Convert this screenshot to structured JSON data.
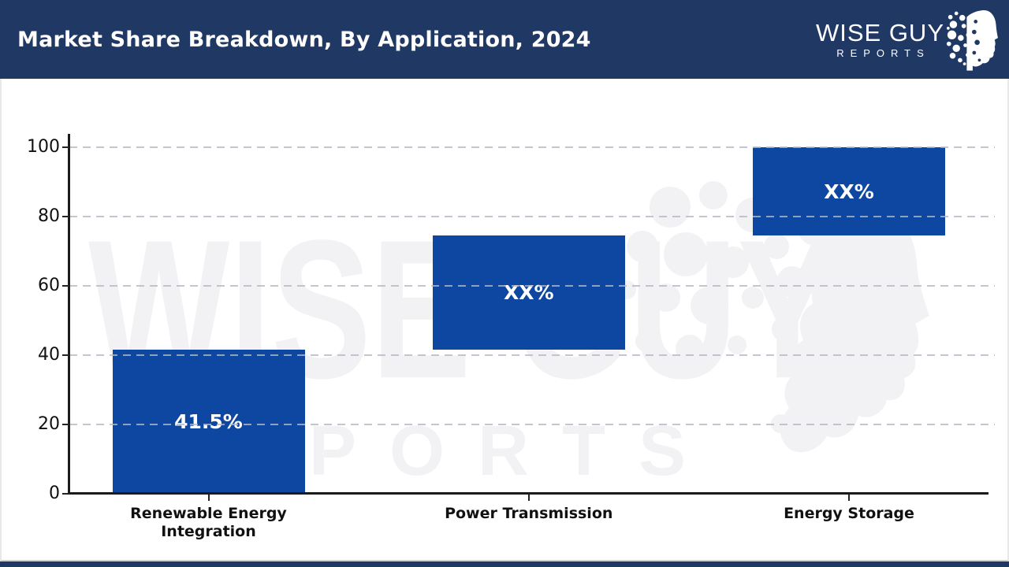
{
  "header": {
    "title": "Market Share Breakdown, By Application, 2024"
  },
  "logo": {
    "line1": "WISE GUY",
    "line2": "REPORTS"
  },
  "watermark": {
    "line1": "WISE GUY",
    "line2": "REPORTS"
  },
  "chart_data": {
    "type": "bar",
    "subtype": "floating-segment-bars (stacked percentage breakdown)",
    "title": "Market Share Breakdown, By Application, 2024",
    "categories": [
      "Renewable Energy Integration",
      "Power Transmission",
      "Energy Storage"
    ],
    "series": [
      {
        "name": "Renewable Energy Integration",
        "start": 0,
        "end": 41.5,
        "label": "41.5%"
      },
      {
        "name": "Power Transmission",
        "start": 41.5,
        "end": 74.5,
        "label": "XX%"
      },
      {
        "name": "Energy Storage",
        "start": 74.5,
        "end": 100,
        "label": "XX%"
      }
    ],
    "xlabel": "",
    "ylabel": "",
    "yticks": [
      0,
      20,
      40,
      60,
      80,
      100
    ],
    "ylim": [
      0,
      104
    ],
    "grid": "horizontal dashed, drawn over bars",
    "legend": "none",
    "bar_color": "#0d47a1",
    "bar_label_color": "#ffffff"
  },
  "colors": {
    "header_bg": "#1f3864",
    "footer_bg": "#1f3864",
    "bar": "#0d47a1",
    "axis": "#1a1a1a",
    "watermark": "#f2f2f4"
  }
}
